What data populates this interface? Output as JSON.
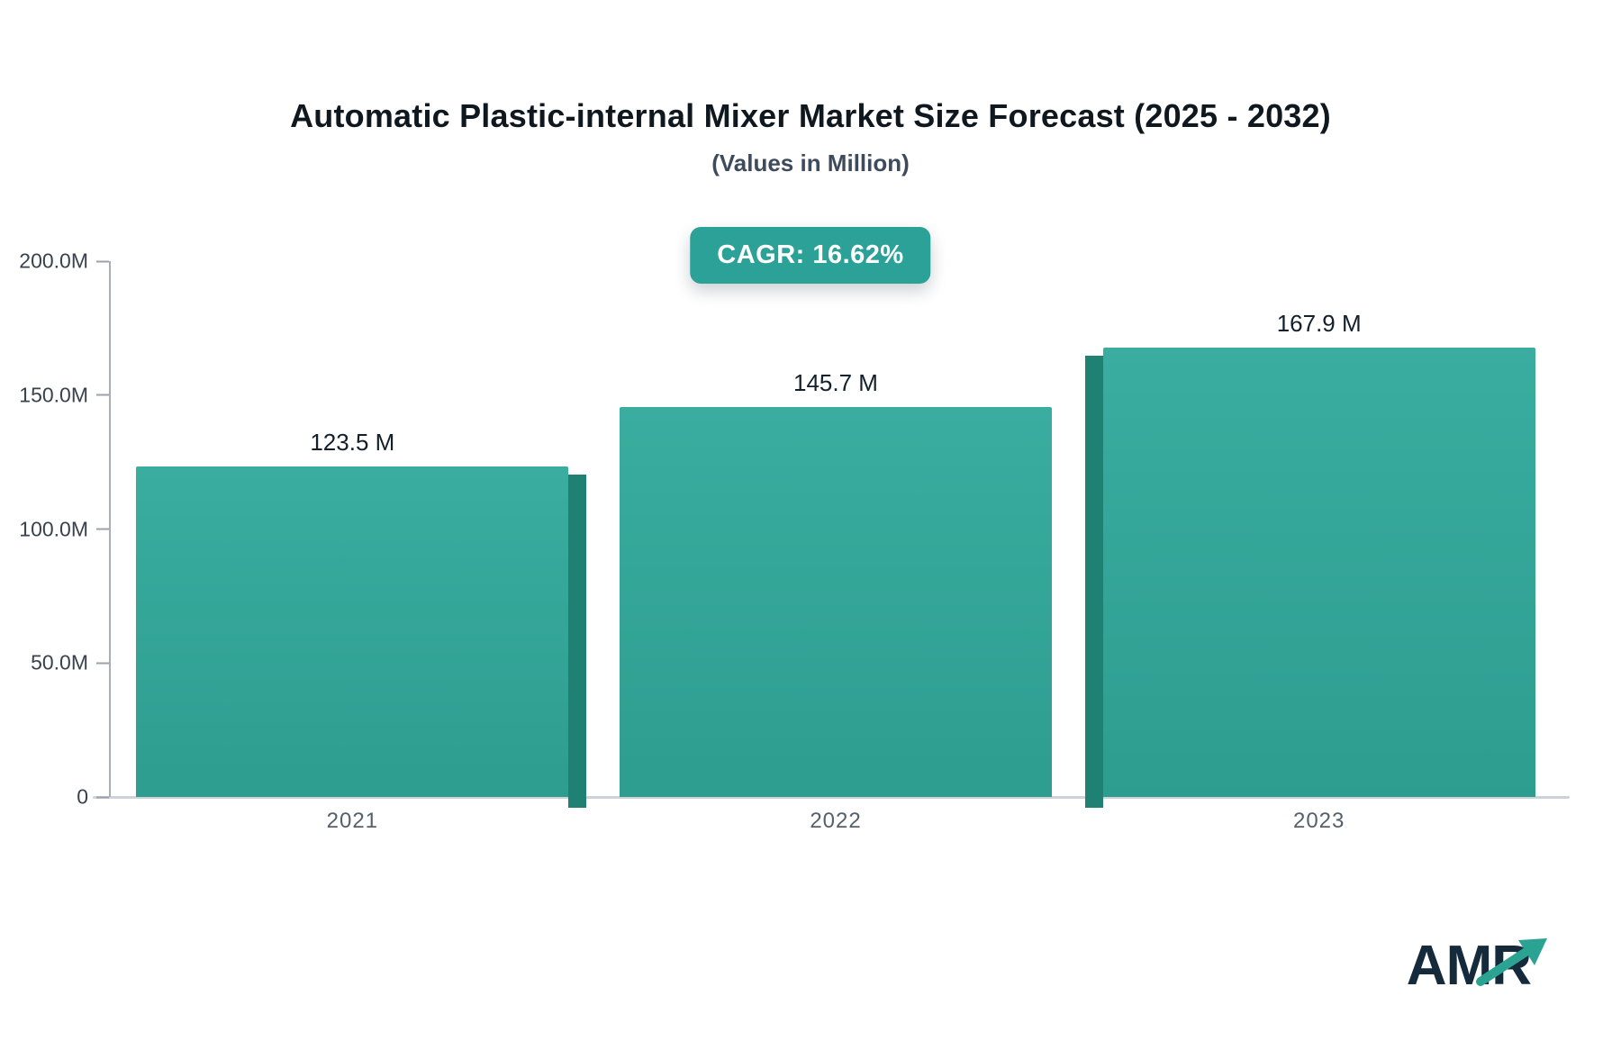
{
  "chart_data": {
    "type": "bar",
    "title": "Automatic Plastic-internal Mixer Market Size Forecast (2025 - 2032)",
    "subtitle": "(Values in Million)",
    "annotation": "CAGR: 16.62%",
    "categories": [
      "2021",
      "2022",
      "2023"
    ],
    "values": [
      123.5,
      145.7,
      167.9
    ],
    "value_labels": [
      "123.5 M",
      "145.7 M",
      "167.9 M"
    ],
    "xlabel": "",
    "ylabel": "",
    "ylim": [
      0,
      200
    ],
    "y_ticks": [
      "200.0M",
      "150.0M",
      "100.0M",
      "50.0M",
      "0"
    ],
    "y_tick_values": [
      200,
      150,
      100,
      50,
      0
    ],
    "grid": false,
    "legend": false,
    "bar_color": "#31a697",
    "bar_side_color": "#1f8174",
    "bar_shadow_sides": [
      "right",
      "none",
      "left"
    ]
  },
  "badge": {
    "label": "CAGR: 16.62%",
    "background": "#2ba198",
    "text_color": "#ffffff"
  },
  "logo": {
    "text": "AMR",
    "text_color": "#152a3b",
    "arrow_color": "#2aa392"
  },
  "colors": {
    "title": "#10181f",
    "subtitle": "#3e4b5c",
    "axis_line": "#a7afb6",
    "baseline": "#ccd2d7",
    "tick_label": "#38424d",
    "x_label": "#55606a"
  }
}
